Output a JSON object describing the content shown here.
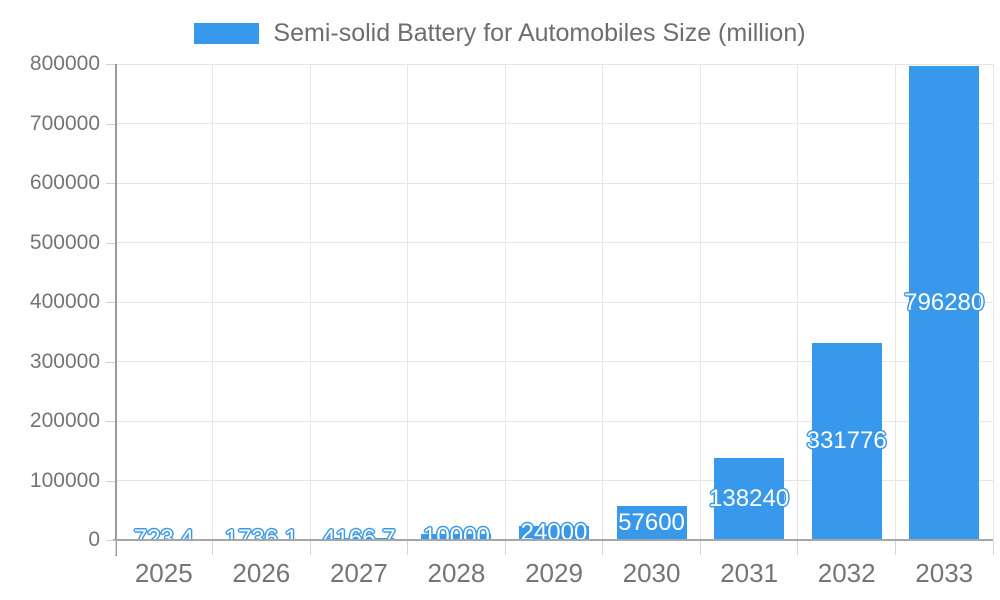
{
  "legend": {
    "label": "Semi-solid Battery for Automobiles Size (million)"
  },
  "colors": {
    "bar": "#3898EC",
    "grid": "#E7E7E7",
    "axis": "#A6A6A6",
    "tick": "#D6D6D6",
    "axis_label_text": "#757575",
    "legend_text": "#6E6E6E",
    "bar_label_fill": "#FFFFFF"
  },
  "chart_data": {
    "type": "bar",
    "title": "Semi-solid Battery for Automobiles Size (million)",
    "categories": [
      "2025",
      "2026",
      "2027",
      "2028",
      "2029",
      "2030",
      "2031",
      "2032",
      "2033"
    ],
    "values": [
      723.4,
      1736.1,
      4166.7,
      10000,
      24000,
      57600,
      138240,
      331776,
      796280
    ],
    "bar_labels": [
      "723.4",
      "1736.1",
      "4166.7",
      "10000",
      "24000",
      "57600",
      "138240",
      "331776",
      "796280"
    ],
    "xlabel": "",
    "ylabel": "",
    "ylim": [
      0,
      800000
    ],
    "ytick_step": 100000,
    "ytick_labels": [
      "0",
      "100000",
      "200000",
      "300000",
      "400000",
      "500000",
      "600000",
      "700000",
      "800000"
    ],
    "grid": true,
    "legend_position": "top-center",
    "bar_value_label_position": "middle-of-bar"
  }
}
